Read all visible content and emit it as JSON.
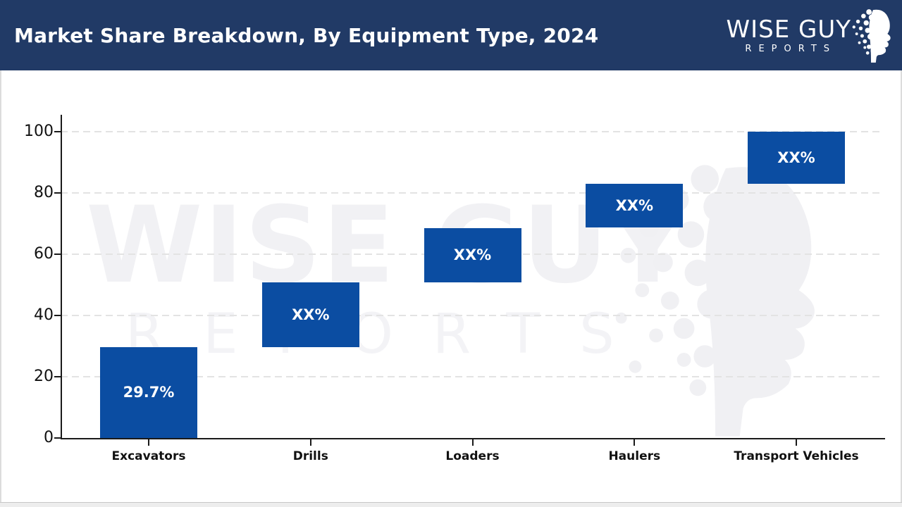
{
  "header": {
    "title": "Market Share Breakdown, By Equipment Type, 2024",
    "logo": {
      "primary": "WISE GUY",
      "secondary": "REPORTS"
    }
  },
  "watermark": {
    "line1": "WISE GUY",
    "line2": "REPORTS"
  },
  "colors": {
    "header_bg": "#213a66",
    "bar_fill": "#0b4da2",
    "bar_label": "#ffffff",
    "axis": "#1a1a1a",
    "gridline": "#e3e3e3",
    "watermark": "#f1f1f4"
  },
  "chart_data": {
    "type": "bar",
    "subtype": "waterfall",
    "title": "Market Share Breakdown, By Equipment Type, 2024",
    "categories": [
      "Excavators",
      "Drills",
      "Loaders",
      "Haulers",
      "Transport Vehicles"
    ],
    "segments": [
      {
        "category": "Excavators",
        "start": 0,
        "end": 29.7,
        "label": "29.7%"
      },
      {
        "category": "Drills",
        "start": 29.7,
        "end": 50.8,
        "label": "XX%"
      },
      {
        "category": "Loaders",
        "start": 50.8,
        "end": 68.6,
        "label": "XX%"
      },
      {
        "category": "Haulers",
        "start": 68.8,
        "end": 82.9,
        "label": "XX%"
      },
      {
        "category": "Transport Vehicles",
        "start": 83.1,
        "end": 100,
        "label": "XX%"
      }
    ],
    "yticks": [
      0,
      20,
      40,
      60,
      80,
      100
    ],
    "ytick_labels": [
      "0",
      "20",
      "40",
      "60",
      "80",
      "100"
    ],
    "ylim": [
      0,
      100
    ],
    "xlabel": "",
    "ylabel": "",
    "grid": "dashed-horizontal",
    "legend": "none"
  }
}
